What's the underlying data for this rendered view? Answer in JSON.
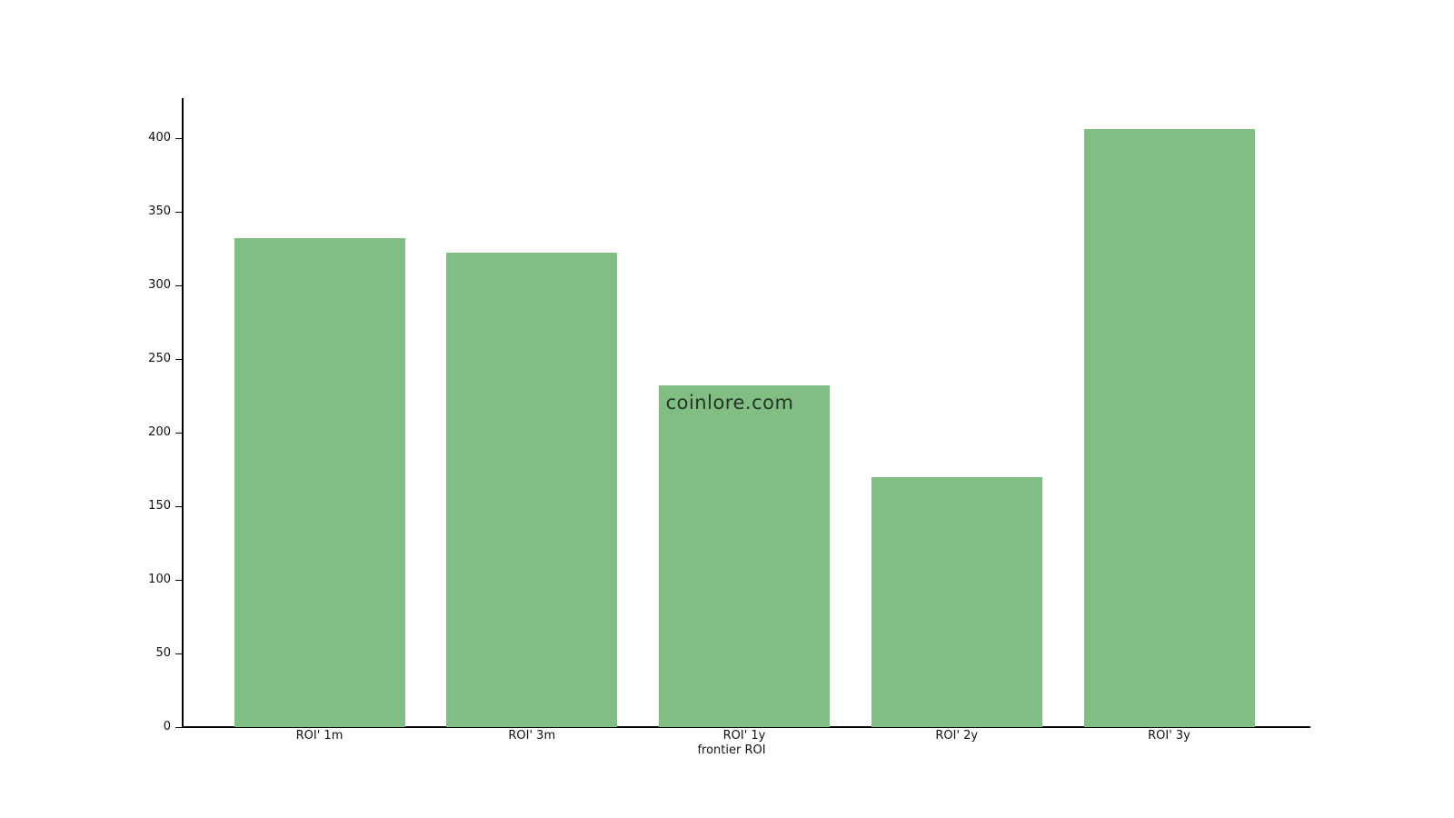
{
  "chart_data": {
    "type": "bar",
    "categories": [
      "ROI' 1m",
      "ROI' 3m",
      "ROI' 1y",
      "ROI' 2y",
      "ROI' 3y"
    ],
    "values": [
      332,
      322,
      232,
      170,
      406
    ],
    "title": "",
    "xlabel": "frontier ROI",
    "ylabel": "",
    "ylim": [
      0,
      427
    ],
    "yticks": [
      0,
      50,
      100,
      150,
      200,
      250,
      300,
      350,
      400
    ],
    "grid": false,
    "legend": null,
    "colors": {
      "bar_fill": "#81be84",
      "axis": "#000000",
      "tick_text": "#111111",
      "background": "#ffffff",
      "watermark_text": "rgba(0,0,0,0.72)"
    },
    "watermark": "coinlore.com"
  }
}
